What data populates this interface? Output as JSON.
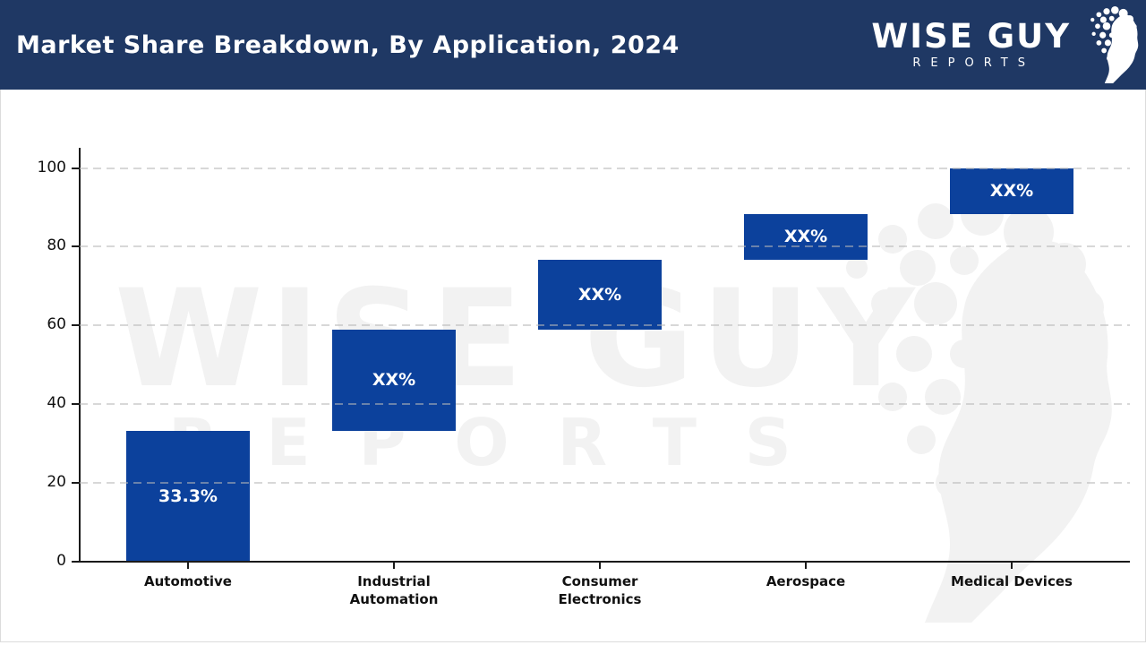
{
  "header": {
    "title": "Market Share Breakdown, By Application, 2024",
    "bg_color": "#1f3864",
    "logo": {
      "line1": "WISE GUY",
      "line2": "REPORTS"
    }
  },
  "watermark": {
    "line1": "WISE GUY",
    "line2": "REPORTS"
  },
  "chart_data": {
    "type": "bar",
    "subtype": "waterfall",
    "title": "Market Share Breakdown, By Application, 2024",
    "categories": [
      "Automotive",
      "Industrial Automation",
      "Consumer Electronics",
      "Aerospace",
      "Medical Devices"
    ],
    "segments": [
      {
        "category": "Automotive",
        "category_lines": [
          "Automotive"
        ],
        "start": 0,
        "end": 33.3,
        "label": "33.3%"
      },
      {
        "category": "Industrial Automation",
        "category_lines": [
          "Industrial",
          "Automation"
        ],
        "start": 33.3,
        "end": 58.9,
        "label": "XX%"
      },
      {
        "category": "Consumer Electronics",
        "category_lines": [
          "Consumer",
          "Electronics"
        ],
        "start": 58.9,
        "end": 76.7,
        "label": "XX%"
      },
      {
        "category": "Aerospace",
        "category_lines": [
          "Aerospace"
        ],
        "start": 76.7,
        "end": 88.3,
        "label": "XX%"
      },
      {
        "category": "Medical Devices",
        "category_lines": [
          "Medical Devices"
        ],
        "start": 88.3,
        "end": 100,
        "label": "XX%"
      }
    ],
    "xlabel": "",
    "ylabel": "",
    "ylim": [
      0,
      100
    ],
    "yticks": [
      0,
      20,
      40,
      60,
      80,
      100
    ],
    "grid": true,
    "legend": "none",
    "bar_color": "#0c419c",
    "bar_label_color": "#ffffff"
  }
}
